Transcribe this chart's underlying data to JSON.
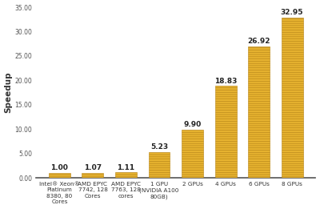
{
  "categories": [
    "Intel® Xeon®\nPlatinum\n8380, 80\nCores",
    "AMD EPYC\n7742, 128\nCores",
    "AMD EPYC\n7763, 128\ncores",
    "1 GPU\n(NVIDIA A100\n80GB)",
    "2 GPUs",
    "4 GPUs",
    "6 GPUs",
    "8 GPUs"
  ],
  "values": [
    1.0,
    1.07,
    1.11,
    5.23,
    9.9,
    18.83,
    26.92,
    32.95
  ],
  "bar_color": "#E8B430",
  "bar_edge_color": "#B8861A",
  "hatch_color": "#C89018",
  "ylabel": "Speedup",
  "ylim": [
    0,
    35
  ],
  "yticks": [
    0.0,
    5.0,
    10.0,
    15.0,
    20.0,
    25.0,
    30.0,
    35.0
  ],
  "value_fontsize": 6.5,
  "label_fontsize": 5.2,
  "ylabel_fontsize": 7.5,
  "background_color": "#ffffff"
}
